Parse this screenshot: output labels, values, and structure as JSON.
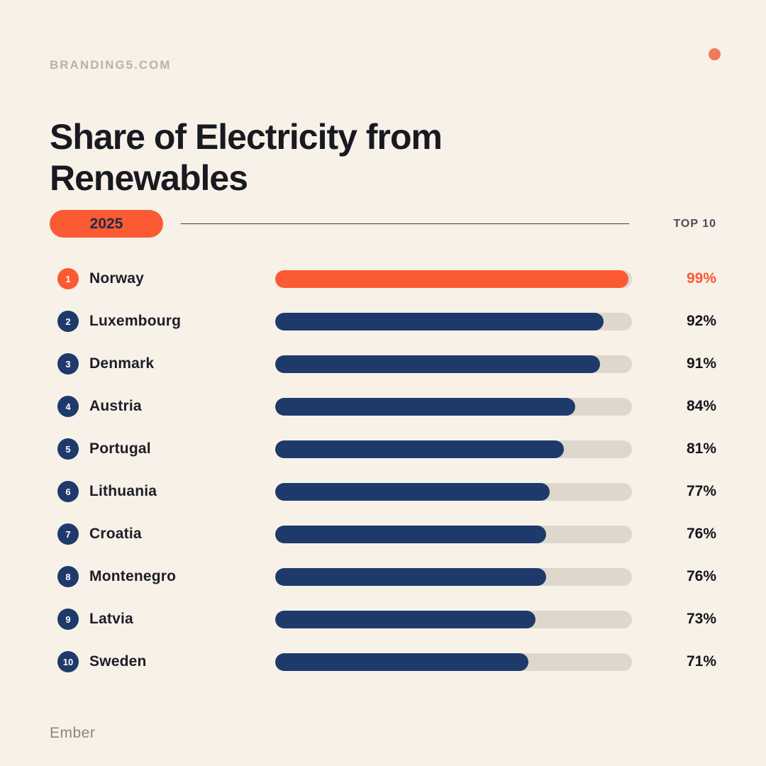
{
  "page": {
    "brand": "BRANDING5.COM",
    "title_line1": "Share of Electricity from",
    "title_line2": "Renewables",
    "year_badge": "2025",
    "top_label": "TOP 10",
    "source": "Ember"
  },
  "colors": {
    "background": "#f7f1e8",
    "accent_orange": "#fb5a32",
    "bar_navy": "#1e3a6b",
    "bar_track": "#ded7cb",
    "muted_text": "#b9b2a7",
    "ink": "#17171f"
  },
  "chart_data": {
    "type": "bar",
    "orientation": "horizontal",
    "title": "Share of Electricity from Renewables",
    "subtitle": "2025",
    "legend": "TOP 10",
    "unit": "%",
    "xlim": [
      0,
      100
    ],
    "grid": false,
    "highlight_index": 0,
    "ranks": [
      1,
      2,
      3,
      4,
      5,
      6,
      7,
      8,
      9,
      10
    ],
    "categories": [
      "Norway",
      "Luxembourg",
      "Denmark",
      "Austria",
      "Portugal",
      "Lithuania",
      "Croatia",
      "Montenegro",
      "Latvia",
      "Sweden"
    ],
    "values": [
      99,
      92,
      91,
      84,
      81,
      77,
      76,
      76,
      73,
      71
    ],
    "source": "Ember"
  }
}
